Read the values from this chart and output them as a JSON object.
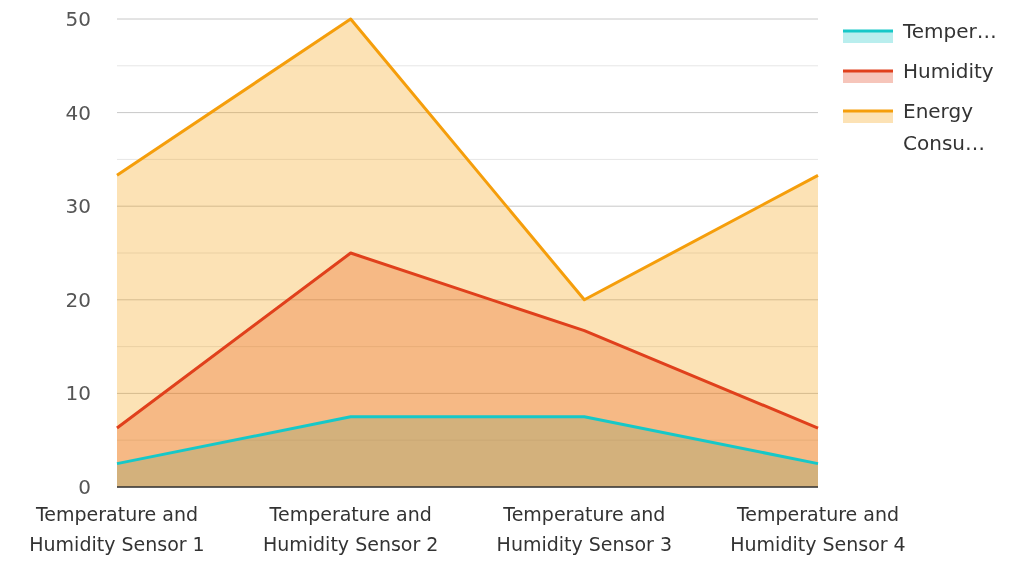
{
  "chart_data": {
    "type": "area",
    "categories": [
      "Temperature and Humidity Sensor 1",
      "Temperature and Humidity Sensor 2",
      "Temperature and Humidity Sensor 3",
      "Temperature and Humidity Sensor 4"
    ],
    "series": [
      {
        "name": "Temper…",
        "color": "#16c8c8",
        "values": [
          2.5,
          7.5,
          7.5,
          2.5
        ]
      },
      {
        "name": "Humidity",
        "color": "#e0401c",
        "values": [
          6.3,
          25,
          16.7,
          6.3
        ]
      },
      {
        "name": "Energy Consu…",
        "color": "#f59e0b",
        "values": [
          33.3,
          50,
          20,
          33.3
        ]
      }
    ],
    "ylim": [
      0,
      50
    ],
    "yticks": [
      0,
      {
        "value": 5,
        "label": null
      },
      10,
      {
        "value": 15,
        "label": null
      },
      20,
      {
        "value": 25,
        "label": null
      },
      30,
      {
        "value": 35,
        "label": null
      },
      40,
      {
        "value": 45,
        "label": null
      },
      50
    ],
    "grid": "y",
    "legend": "right"
  }
}
